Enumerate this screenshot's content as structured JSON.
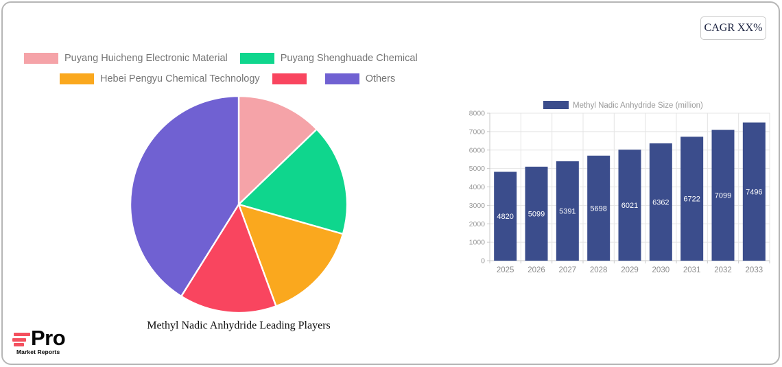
{
  "page": {
    "cagr_label": "CAGR XX%"
  },
  "logo": {
    "title": "Pro",
    "subtitle": "Market Reports"
  },
  "legend": {
    "items": [
      {
        "label": "Puyang Huicheng Electronic Material",
        "color": "#f5a3a8"
      },
      {
        "label": "Puyang Shenghuade Chemical",
        "color": "#0fd68d"
      },
      {
        "label": "Hebei Pengyu Chemical Technology",
        "color": "#faa81e"
      },
      {
        "label": "",
        "color": "#f9455f"
      },
      {
        "label": "Others",
        "color": "#7061d2"
      }
    ]
  },
  "chart_data": [
    {
      "type": "pie",
      "title": "Methyl Nadic Anhydride Leading Players",
      "labels": [
        "Puyang Huicheng Electronic Material",
        "Puyang Shenghuade Chemical",
        "Hebei Pengyu Chemical Technology",
        "",
        "Others"
      ],
      "values": [
        12.8,
        16.6,
        15.0,
        14.5,
        41.1
      ],
      "colors": [
        "#f5a3a8",
        "#0fd68d",
        "#faa81e",
        "#f9455f",
        "#7061d2"
      ],
      "start_angle": "top",
      "direction": "clockwise",
      "slice_border_color": "#ffffff"
    },
    {
      "type": "bar",
      "legend": "Methyl Nadic Anhydride Size (million)",
      "categories": [
        "2025",
        "2026",
        "2027",
        "2028",
        "2029",
        "2030",
        "2031",
        "2032",
        "2033"
      ],
      "values": [
        4820,
        5099,
        5391,
        5698,
        6021,
        6362,
        6722,
        7099,
        7496
      ],
      "yticks": [
        0,
        1000,
        2000,
        3000,
        4000,
        5000,
        6000,
        7000,
        8000
      ],
      "ylim": [
        0,
        8000
      ],
      "grid": true,
      "bar_color": "#3b4d8c",
      "value_label_color": "#ffffff",
      "axis_label_color": "#999999",
      "legend_text_color": "#9a9a9a",
      "grid_color": "#e4e4e4",
      "axis_color": "#c9c9c9"
    }
  ]
}
